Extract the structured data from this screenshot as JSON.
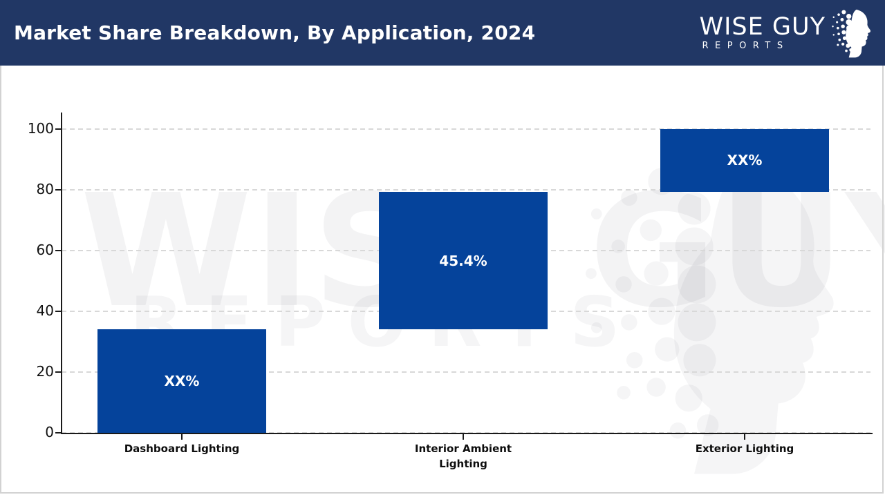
{
  "header": {
    "title": "Market Share Breakdown, By Application, 2024",
    "bg_color": "#213765",
    "logo": {
      "primary": "WISE GUY",
      "secondary": "REPORTS"
    }
  },
  "watermark": {
    "primary": "WISE GUY",
    "secondary": "REPORTS"
  },
  "chart_data": {
    "type": "bar",
    "subtype": "percentage-waterfall",
    "title": "Market Share Breakdown, By Application, 2024",
    "categories": [
      "Dashboard Lighting",
      "Interior Ambient Lighting",
      "Exterior Lighting"
    ],
    "category_lines": [
      [
        "Dashboard Lighting"
      ],
      [
        "Interior Ambient",
        "Lighting"
      ],
      [
        "Exterior Lighting"
      ]
    ],
    "bars": [
      {
        "category": "Dashboard Lighting",
        "label": "XX%",
        "start": 0,
        "end": 34
      },
      {
        "category": "Interior Ambient Lighting",
        "label": "45.4%",
        "start": 34,
        "end": 79.4
      },
      {
        "category": "Exterior Lighting",
        "label": "XX%",
        "start": 79.4,
        "end": 100
      }
    ],
    "xlabel": "",
    "ylabel": "",
    "ylim": [
      0,
      100
    ],
    "yticks": [
      0,
      20,
      40,
      60,
      80,
      100
    ],
    "bar_color": "#05439b",
    "grid": {
      "horizontal": true,
      "style": "dashed",
      "color": "#d8d8d8"
    },
    "legend": "none"
  }
}
